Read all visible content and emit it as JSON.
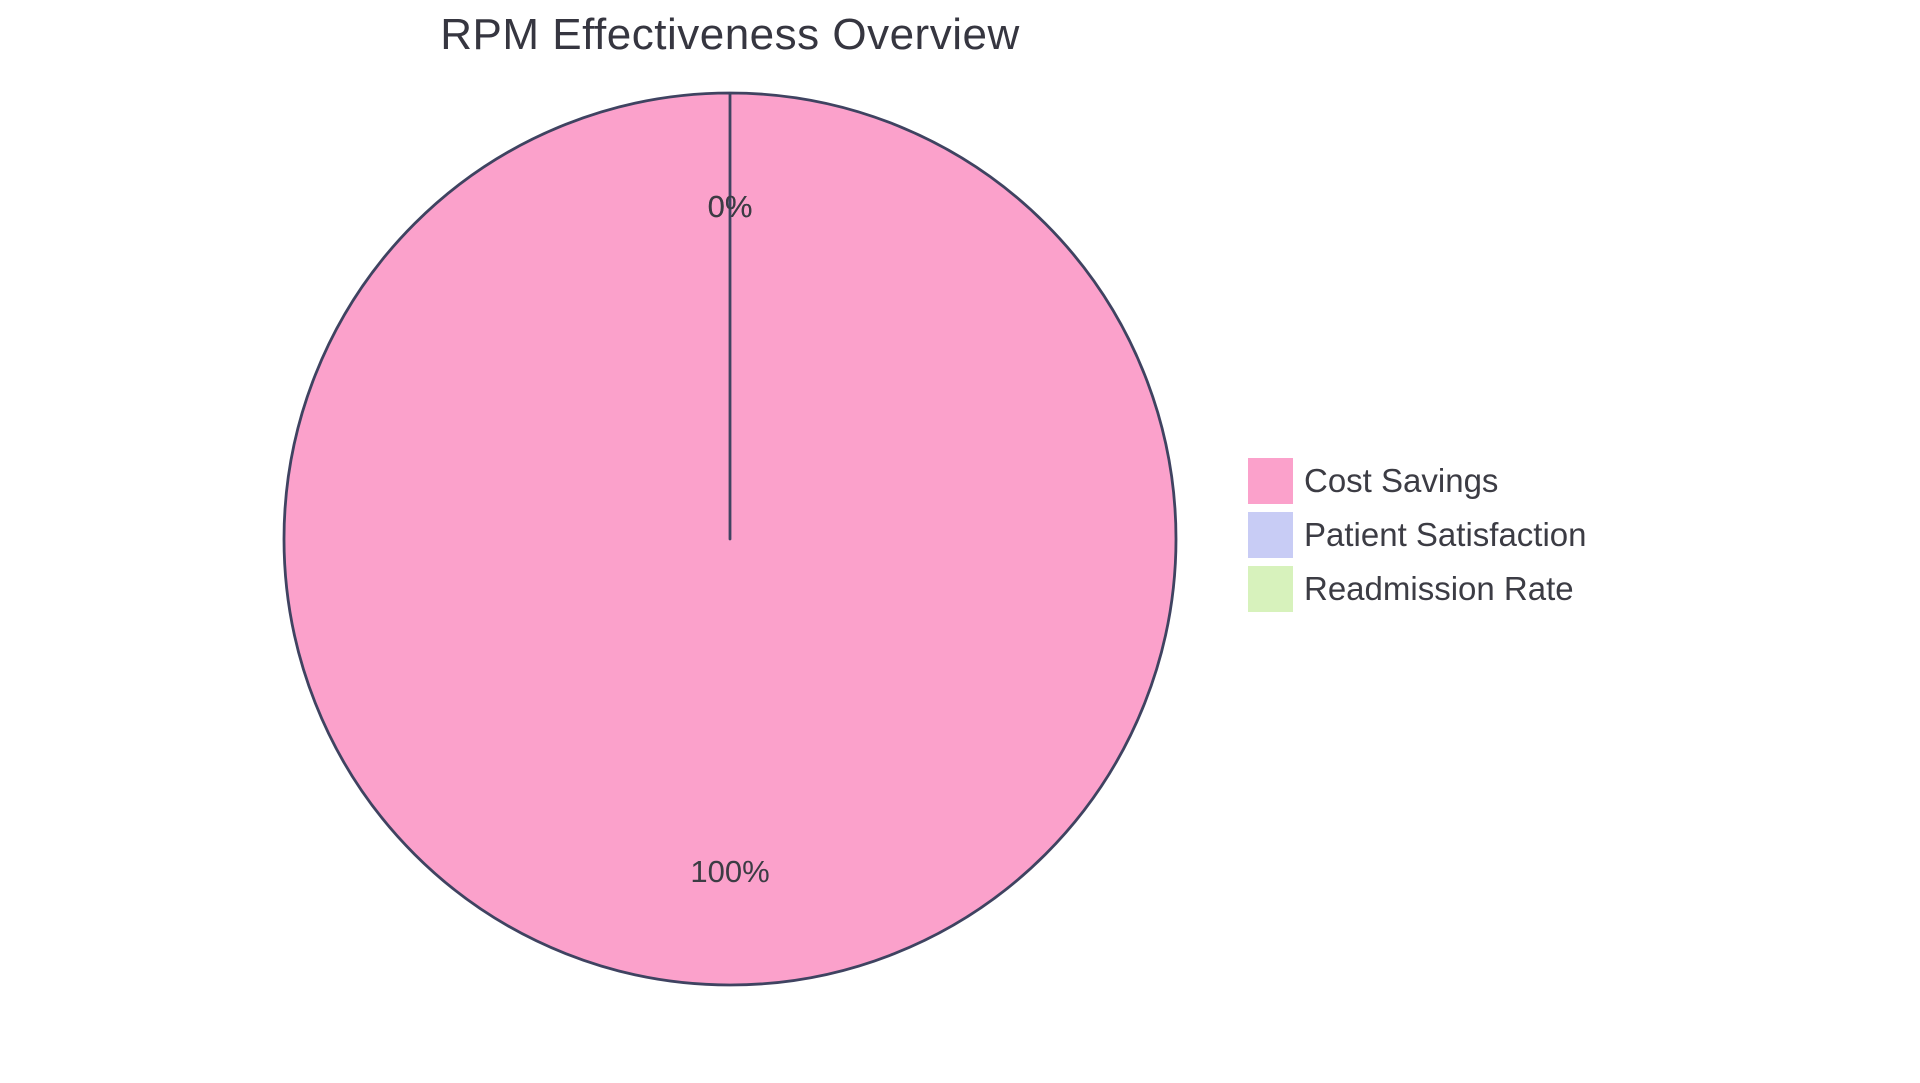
{
  "chart_data": {
    "type": "pie",
    "title": "RPM Effectiveness Overview",
    "legend_position": "right",
    "label_format": "percent",
    "series": [
      {
        "name": "Cost Savings",
        "value": 100,
        "label": "100%",
        "color": "#FBA1CB"
      },
      {
        "name": "Patient Satisfaction",
        "value": 0,
        "label": "0%",
        "color": "#C8CCF5"
      },
      {
        "name": "Readmission Rate",
        "value": 0,
        "label": "0%",
        "color": "#D7F2BC"
      }
    ],
    "colors": {
      "slice_border": "#3F4361",
      "label_text": "#3C3C44",
      "title_text": "#363640",
      "legend_text": "#3C3C44",
      "background": "#FFFFFF"
    }
  }
}
